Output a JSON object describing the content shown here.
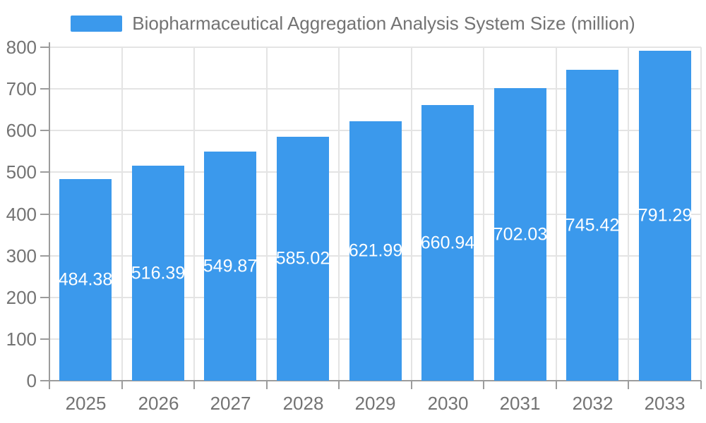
{
  "legend": {
    "label": "Biopharmaceutical Aggregation Analysis System Size (million)"
  },
  "colors": {
    "bar": "#3B99EC",
    "grid": "#E4E4E4",
    "axis": "#9C9C9C",
    "text": "#737373",
    "value_label": "#FFFFFF",
    "background": "#FFFFFF"
  },
  "chart_data": {
    "type": "bar",
    "title": "Biopharmaceutical Aggregation Analysis System Size (million)",
    "series_name": "Biopharmaceutical Aggregation Analysis System Size (million)",
    "categories": [
      "2025",
      "2026",
      "2027",
      "2028",
      "2029",
      "2030",
      "2031",
      "2032",
      "2033"
    ],
    "values": [
      484.38,
      516.39,
      549.87,
      585.02,
      621.99,
      660.94,
      702.03,
      745.42,
      791.29
    ],
    "value_label_decimals": 2,
    "value_label_position": "inside-middle",
    "xlabel": "",
    "ylabel": "",
    "ylim": [
      0,
      800
    ],
    "y_ticks": [
      0,
      100,
      200,
      300,
      400,
      500,
      600,
      700,
      800
    ],
    "grid": true,
    "legend_position": "top-center"
  }
}
